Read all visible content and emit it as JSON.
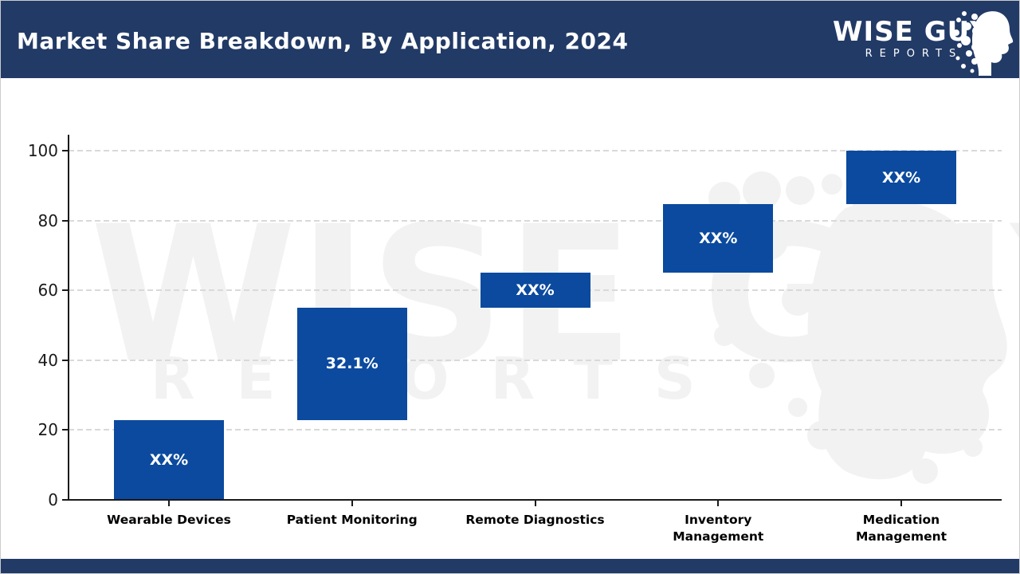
{
  "header": {
    "title": "Market Share Breakdown, By Application, 2024"
  },
  "logo": {
    "line1": "WISE GUY",
    "line2": "REPORTS"
  },
  "watermark": {
    "line1": "WISE GUY",
    "line2": "REPORTS"
  },
  "chart_data": {
    "type": "bar",
    "subtype": "floating-waterfall",
    "title": "Market Share Breakdown, By Application, 2024",
    "xlabel": "",
    "ylabel": "",
    "categories": [
      "Wearable Devices",
      "Patient Monitoring",
      "Remote Diagnostics",
      "Inventory\nManagement",
      "Medication\nManagement"
    ],
    "segments": [
      {
        "category": "Wearable Devices",
        "start": 0,
        "end": 22.9,
        "value": 22.9,
        "label": "XX%"
      },
      {
        "category": "Patient Monitoring",
        "start": 22.9,
        "end": 55.0,
        "value": 32.1,
        "label": "32.1%"
      },
      {
        "category": "Remote Diagnostics",
        "start": 55.0,
        "end": 65.0,
        "value": 10.0,
        "label": "XX%"
      },
      {
        "category": "Inventory Management",
        "start": 65.0,
        "end": 84.6,
        "value": 19.6,
        "label": "XX%"
      },
      {
        "category": "Medication Management",
        "start": 84.6,
        "end": 100.0,
        "value": 15.4,
        "label": "XX%"
      }
    ],
    "yticks": [
      0,
      20,
      40,
      60,
      80,
      100
    ],
    "ylim": [
      0,
      104
    ],
    "grid": "horizontal-dashed",
    "legend": "none",
    "bar_color": "#0b4a9e",
    "bar_label_color": "#ffffff"
  },
  "colors": {
    "header_bg": "#223a66",
    "footer_bg": "#223a66",
    "bar": "#0b4a9e",
    "grid": "#d9d9d9",
    "axis": "#1a1a1a",
    "watermark": "#f2f2f2"
  }
}
